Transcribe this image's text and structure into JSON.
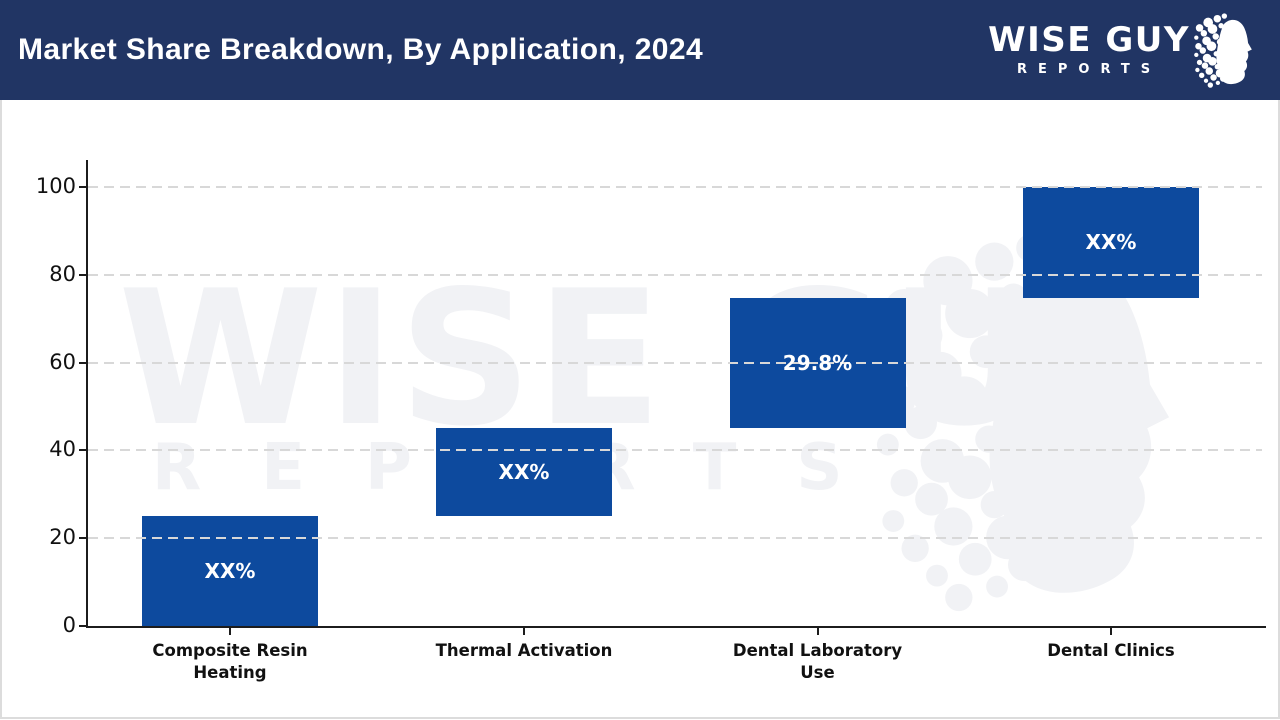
{
  "header": {
    "title": "Market Share Breakdown, By Application, 2024",
    "logo": {
      "brand_line1": "WISE GUY",
      "brand_line2": "REPORTS"
    }
  },
  "watermark": {
    "line1": "WISE GU",
    "line2": "REPORTS"
  },
  "colors": {
    "header_bg": "#213564",
    "bar": "#0d4a9e",
    "grid": "#d8d8d8",
    "axis": "#1c1c1c",
    "tick_text": "#111111",
    "bar_label_text": "#ffffff",
    "watermark": "#f1f2f5",
    "frame_border": "#dcdcdc"
  },
  "chart_data": {
    "type": "bar",
    "variant": "waterfall",
    "title": "Market Share Breakdown, By Application, 2024",
    "unit": "%",
    "categories": [
      [
        "Composite Resin",
        "Heating"
      ],
      [
        "Thermal Activation"
      ],
      [
        "Dental Laboratory",
        "Use"
      ],
      [
        "Dental Clinics"
      ]
    ],
    "segments": [
      {
        "category": "Composite Resin Heating",
        "start": 0,
        "end": 25,
        "value_label": "XX%"
      },
      {
        "category": "Thermal Activation",
        "start": 25,
        "end": 45,
        "value_label": "XX%"
      },
      {
        "category": "Dental Laboratory Use",
        "start": 45,
        "end": 74.8,
        "value_label": "29.8%"
      },
      {
        "category": "Dental Clinics",
        "start": 74.8,
        "end": 100,
        "value_label": "XX%"
      }
    ],
    "yticks": [
      0,
      20,
      40,
      60,
      80,
      100
    ],
    "ylim": [
      0,
      106
    ],
    "xlabel": "",
    "ylabel": "",
    "grid": "horizontal-dashed",
    "legend": "none"
  }
}
